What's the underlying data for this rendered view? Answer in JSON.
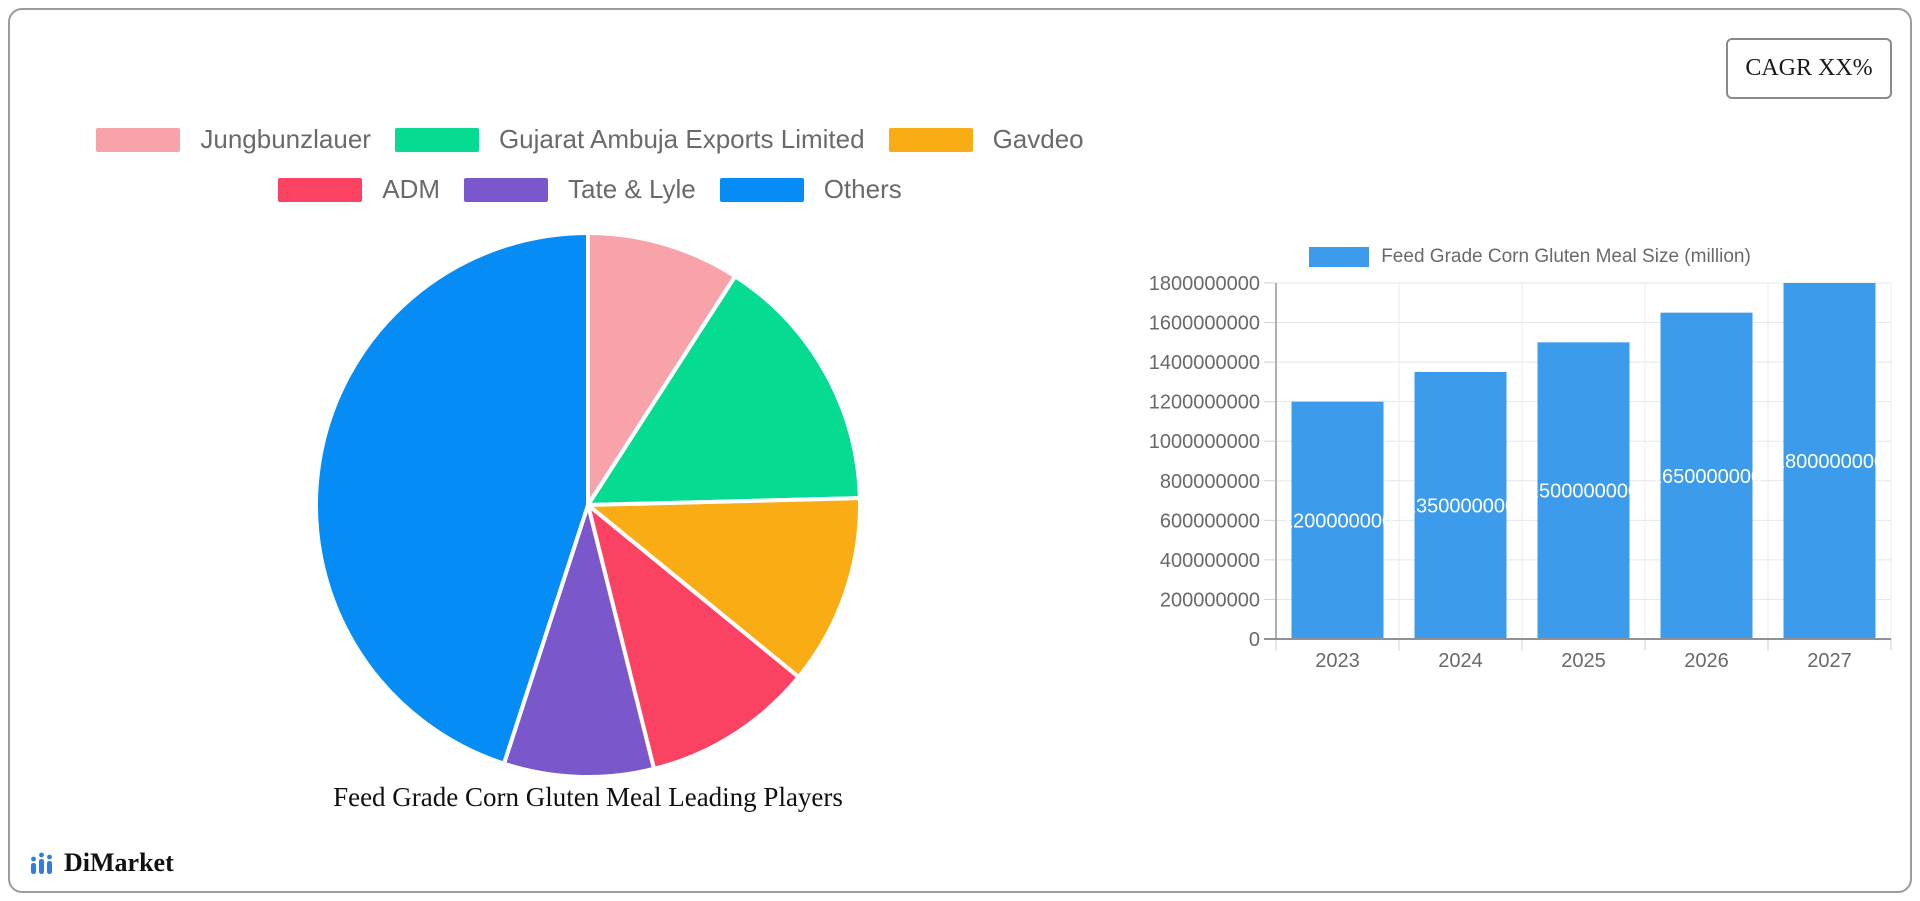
{
  "cagr": {
    "label": "CAGR XX%"
  },
  "logo": {
    "text": "DiMarket",
    "icon_color": "#2e7ee0"
  },
  "chart_data": [
    {
      "type": "pie",
      "title": "Feed Grade Corn Gluten Meal Leading Players",
      "labels": [
        "Jungbunzlauer",
        "Gujarat Ambuja Exports Limited",
        "Gavdeo",
        "ADM",
        "Tate & Lyle",
        "Others"
      ],
      "values": [
        9.1,
        15.5,
        11.3,
        10.2,
        8.9,
        45.0
      ],
      "unit": "percent-share-estimated",
      "colors": [
        "#f7a3a9",
        "#06db92",
        "#faac14",
        "#fb4262",
        "#7a57cb",
        "#068cf5"
      ],
      "legend_position": "top",
      "legend_rows": [
        3,
        3
      ],
      "start_angle": "12-oclock-clockwise"
    },
    {
      "type": "bar",
      "legend": "Feed Grade Corn Gluten Meal Size (million)",
      "categories": [
        "2023",
        "2024",
        "2025",
        "2026",
        "2027"
      ],
      "values": [
        1200000000,
        1350000000,
        1500000000,
        1650000000,
        1800000000
      ],
      "bar_color": "#3d9bec",
      "ylim": [
        0,
        1800000000
      ],
      "ytick_step": 200000000,
      "yticks": [
        "0",
        "200000000",
        "400000000",
        "600000000",
        "800000000",
        "1000000000",
        "1200000000",
        "1400000000",
        "1600000000",
        "1800000000"
      ],
      "grid": true,
      "value_label_color": "#ffffff"
    }
  ]
}
